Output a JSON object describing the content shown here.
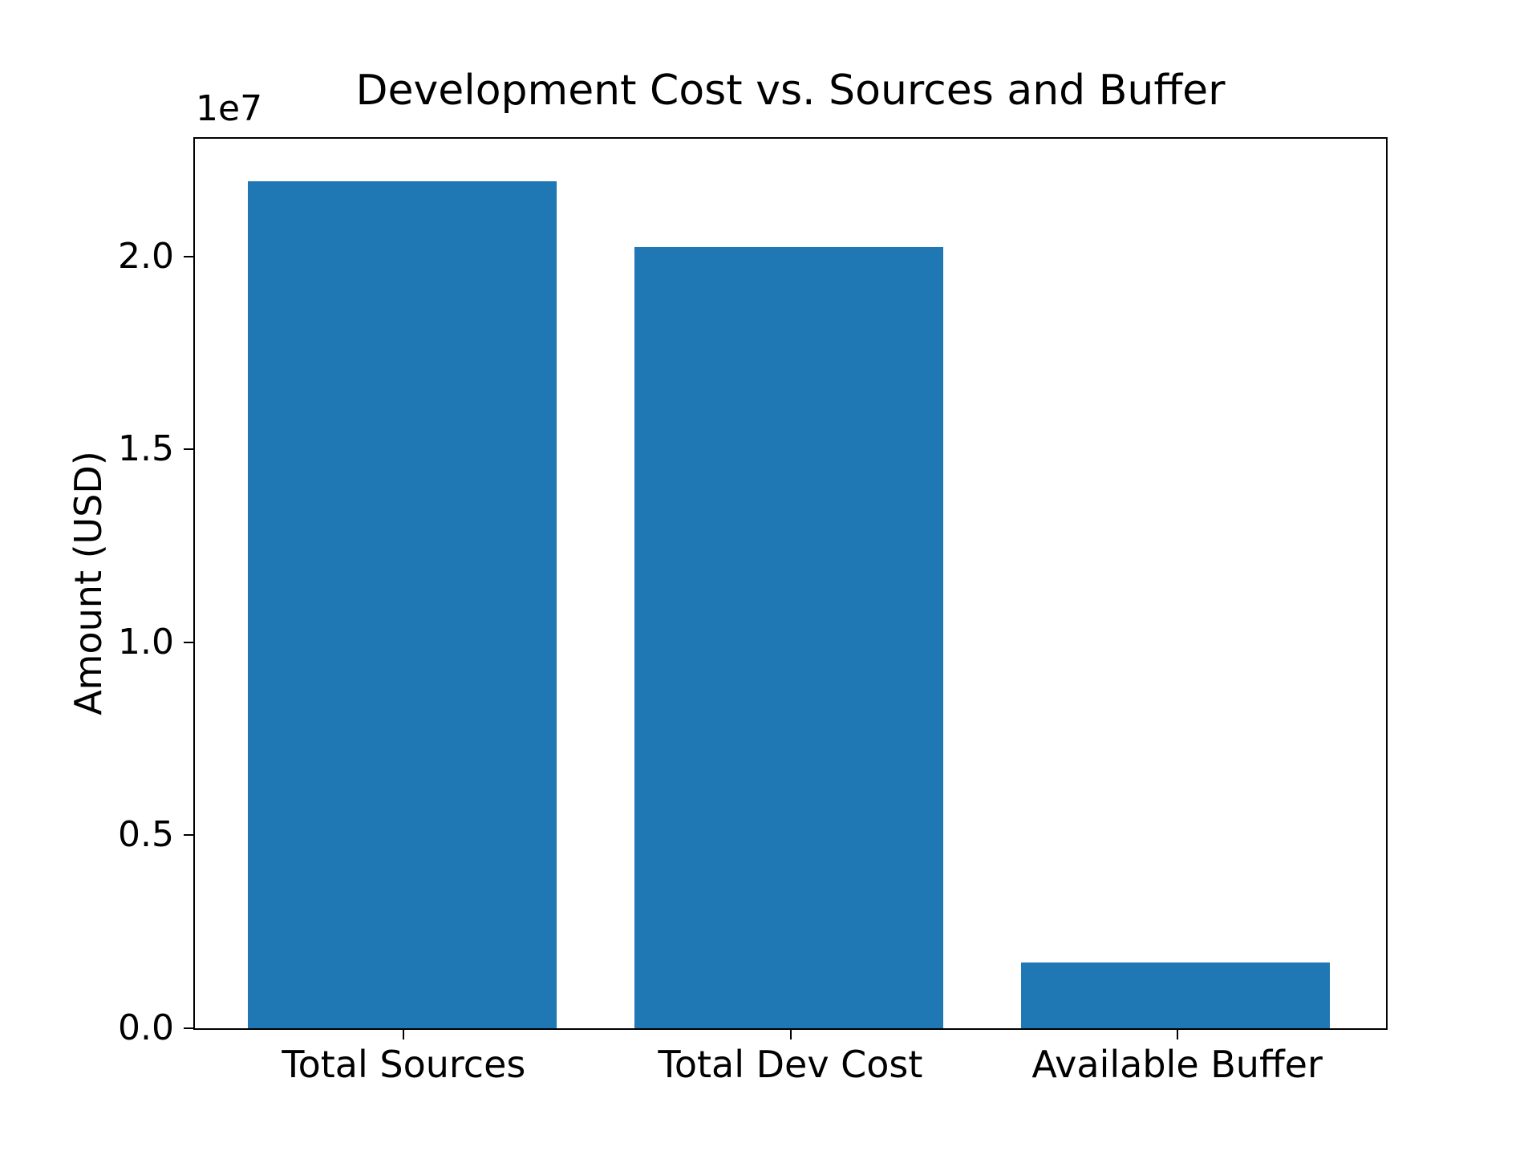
{
  "chart_data": {
    "type": "bar",
    "title": "Development Cost vs. Sources and Buffer",
    "categories": [
      "Total Sources",
      "Total Dev Cost",
      "Available Buffer"
    ],
    "values": [
      21950000,
      20250000,
      1700000
    ],
    "xlabel": "",
    "ylabel": "Amount (USD)",
    "y_offset_label": "1e7",
    "ylim": [
      0,
      23047500
    ],
    "xlim": [
      -0.54,
      2.54
    ],
    "bar_width": 0.8,
    "bar_color": "#1f77b4",
    "axis_color": "#000000",
    "grid": false,
    "legend_position": "none",
    "yticks": [
      {
        "value": 0,
        "label": "0.0"
      },
      {
        "value": 5000000,
        "label": "0.5"
      },
      {
        "value": 10000000,
        "label": "1.0"
      },
      {
        "value": 15000000,
        "label": "1.5"
      },
      {
        "value": 20000000,
        "label": "2.0"
      }
    ]
  }
}
